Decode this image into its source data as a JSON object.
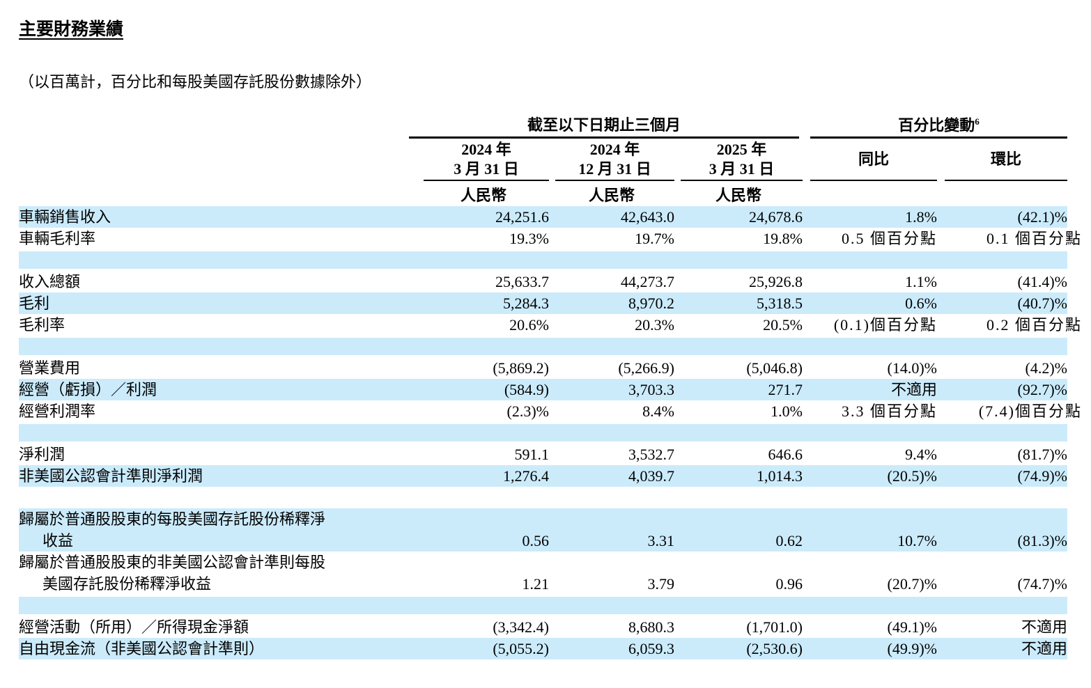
{
  "page": {
    "title": "主要財務業績",
    "subtitle": "（以百萬計，百分比和每股美國存託股份數據除外）"
  },
  "colors": {
    "row_shade": "#cbebfb"
  },
  "table": {
    "group_headers": {
      "period": "截至以下日期止三個月",
      "pct_change": "百分比變動",
      "pct_change_footnote": "6"
    },
    "columns": [
      {
        "line1": "2024 年",
        "line2": "3 月 31 日",
        "currency": "人民幣"
      },
      {
        "line1": "2024 年",
        "line2": "12 月 31 日",
        "currency": "人民幣"
      },
      {
        "line1": "2025 年",
        "line2": "3 月 31 日",
        "currency": "人民幣"
      },
      {
        "label": "同比"
      },
      {
        "label": "環比"
      }
    ],
    "rows": [
      {
        "type": "data",
        "shaded": true,
        "label": "車輛銷售收入",
        "values": [
          "24,251.6",
          "42,643.0",
          "24,678.6",
          "1.8%",
          "(42.1)%"
        ]
      },
      {
        "type": "data",
        "shaded": false,
        "label": "車輛毛利率",
        "values": [
          "19.3%",
          "19.7%",
          "19.8%",
          "0.5 個百分點",
          "0.1 個百分點"
        ]
      },
      {
        "type": "blank",
        "shaded": true
      },
      {
        "type": "data",
        "shaded": false,
        "label": "收入總額",
        "values": [
          "25,633.7",
          "44,273.7",
          "25,926.8",
          "1.1%",
          "(41.4)%"
        ]
      },
      {
        "type": "data",
        "shaded": true,
        "label": "毛利",
        "values": [
          "5,284.3",
          "8,970.2",
          "5,318.5",
          "0.6%",
          "(40.7)%"
        ]
      },
      {
        "type": "data",
        "shaded": false,
        "label": "毛利率",
        "values": [
          "20.6%",
          "20.3%",
          "20.5%",
          "(0.1)個百分點",
          "0.2 個百分點"
        ]
      },
      {
        "type": "blank",
        "shaded": true
      },
      {
        "type": "data",
        "shaded": false,
        "label": "營業費用",
        "values": [
          "(5,869.2)",
          "(5,266.9)",
          "(5,046.8)",
          "(14.0)%",
          "(4.2)%"
        ]
      },
      {
        "type": "data",
        "shaded": true,
        "label": "經營（虧損）／利潤",
        "values": [
          "(584.9)",
          "3,703.3",
          "271.7",
          "不適用",
          "(92.7)%"
        ]
      },
      {
        "type": "data",
        "shaded": false,
        "label": "經營利潤率",
        "values": [
          "(2.3)%",
          "8.4%",
          "1.0%",
          "3.3 個百分點",
          "(7.4)個百分點"
        ]
      },
      {
        "type": "blank",
        "shaded": true
      },
      {
        "type": "data",
        "shaded": false,
        "label": "淨利潤",
        "values": [
          "591.1",
          "3,532.7",
          "646.6",
          "9.4%",
          "(81.7)%"
        ]
      },
      {
        "type": "data",
        "shaded": true,
        "label": "非美國公認會計準則淨利潤",
        "values": [
          "1,276.4",
          "4,039.7",
          "1,014.3",
          "(20.5)%",
          "(74.9)%"
        ]
      },
      {
        "type": "blank",
        "shaded": false
      },
      {
        "type": "data",
        "shaded": true,
        "label": "歸屬於普通股股東的每股美國存託股份稀釋淨",
        "label2": "收益",
        "values": [
          "0.56",
          "3.31",
          "0.62",
          "10.7%",
          "(81.3)%"
        ]
      },
      {
        "type": "data",
        "shaded": false,
        "label": "歸屬於普通股股東的非美國公認會計準則每股",
        "label2": "美國存託股份稀釋淨收益",
        "values": [
          "1.21",
          "3.79",
          "0.96",
          "(20.7)%",
          "(74.7)%"
        ]
      },
      {
        "type": "blank",
        "shaded": true
      },
      {
        "type": "data",
        "shaded": false,
        "label": "經營活動（所用）／所得現金淨額",
        "values": [
          "(3,342.4)",
          "8,680.3",
          "(1,701.0)",
          "(49.1)%",
          "不適用"
        ]
      },
      {
        "type": "data",
        "shaded": true,
        "label": "自由現金流（非美國公認會計準則）",
        "values": [
          "(5,055.2)",
          "6,059.3",
          "(2,530.6)",
          "(49.9)%",
          "不適用"
        ]
      }
    ]
  }
}
